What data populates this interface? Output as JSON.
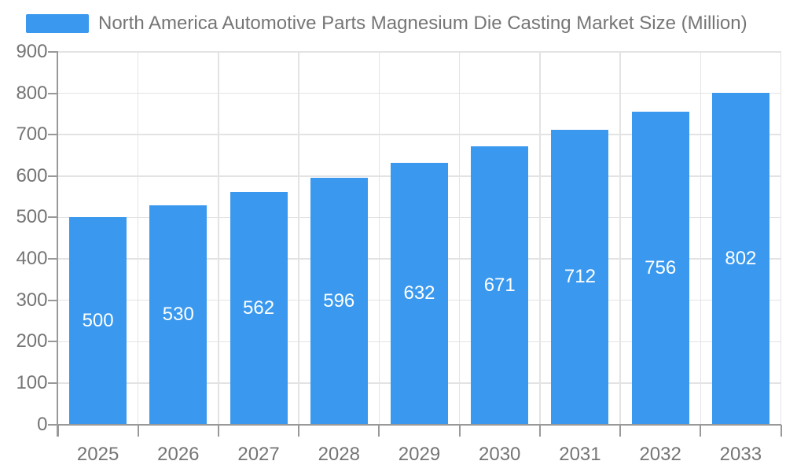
{
  "chart_data": {
    "type": "bar",
    "title": "North America Automotive Parts Magnesium Die Casting Market Size (Million)",
    "categories": [
      "2025",
      "2026",
      "2027",
      "2028",
      "2029",
      "2030",
      "2031",
      "2032",
      "2033"
    ],
    "values": [
      500,
      530,
      562,
      596,
      632,
      671,
      712,
      756,
      802
    ],
    "xlabel": "",
    "ylabel": "",
    "ylim": [
      0,
      900
    ],
    "ytick_step": 100,
    "grid": true,
    "legend_position": "top-left",
    "bar_color": "#3A99EE",
    "bar_label_color": "#FFFFFF",
    "axis_color": "#999999",
    "grid_color": "#E3E3E3",
    "text_color": "#757575"
  }
}
